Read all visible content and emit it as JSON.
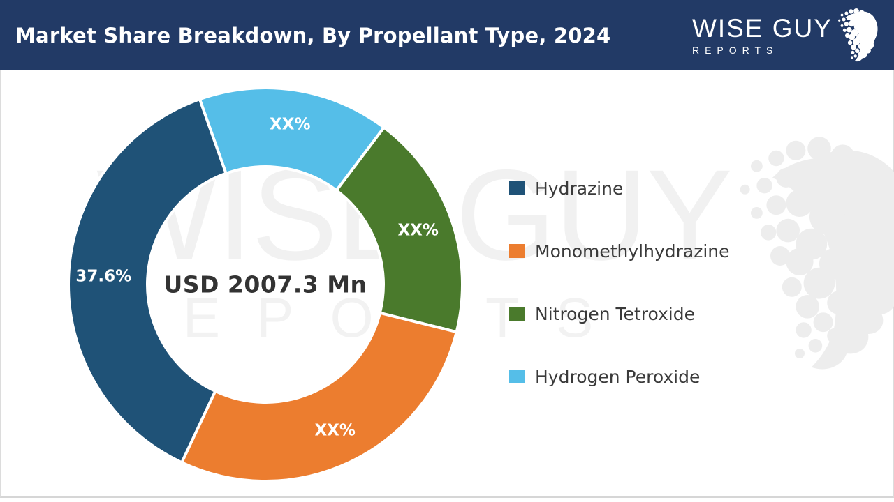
{
  "header": {
    "title": "Market Share Breakdown, By Propellant Type, 2024",
    "background_color": "#223A66",
    "logo": {
      "name": "WISE GUY",
      "subtitle": "REPORTS"
    }
  },
  "chart_data": {
    "type": "pie",
    "variant": "donut",
    "title": "Market Share Breakdown, By Propellant Type, 2024",
    "center_label": "USD 2007.3 Mn",
    "start_angle": -19.5,
    "inner_radius_ratio": 0.6,
    "legend_position": "right",
    "segments": [
      {
        "label": "Hydrogen Peroxide",
        "value": 15.7,
        "display": "XX%",
        "color": "#55BEE8"
      },
      {
        "label": "Nitrogen Tetroxide",
        "value": 18.6,
        "display": "XX%",
        "color": "#4A7A2C"
      },
      {
        "label": "Monomethylhydrazine",
        "value": 28.1,
        "display": "XX%",
        "color": "#EC7D2F"
      },
      {
        "label": "Hydrazine",
        "value": 37.6,
        "display": "37.6%",
        "color": "#1F5277"
      }
    ]
  },
  "legend": {
    "items": [
      {
        "label": "Hydrazine",
        "color": "#1F5277"
      },
      {
        "label": "Monomethylhydrazine",
        "color": "#EC7D2F"
      },
      {
        "label": "Nitrogen Tetroxide",
        "color": "#4A7A2C"
      },
      {
        "label": "Hydrogen Peroxide",
        "color": "#55BEE8"
      }
    ]
  },
  "watermark": {
    "line1": "WISE GUY",
    "line2": "REPORTS"
  }
}
